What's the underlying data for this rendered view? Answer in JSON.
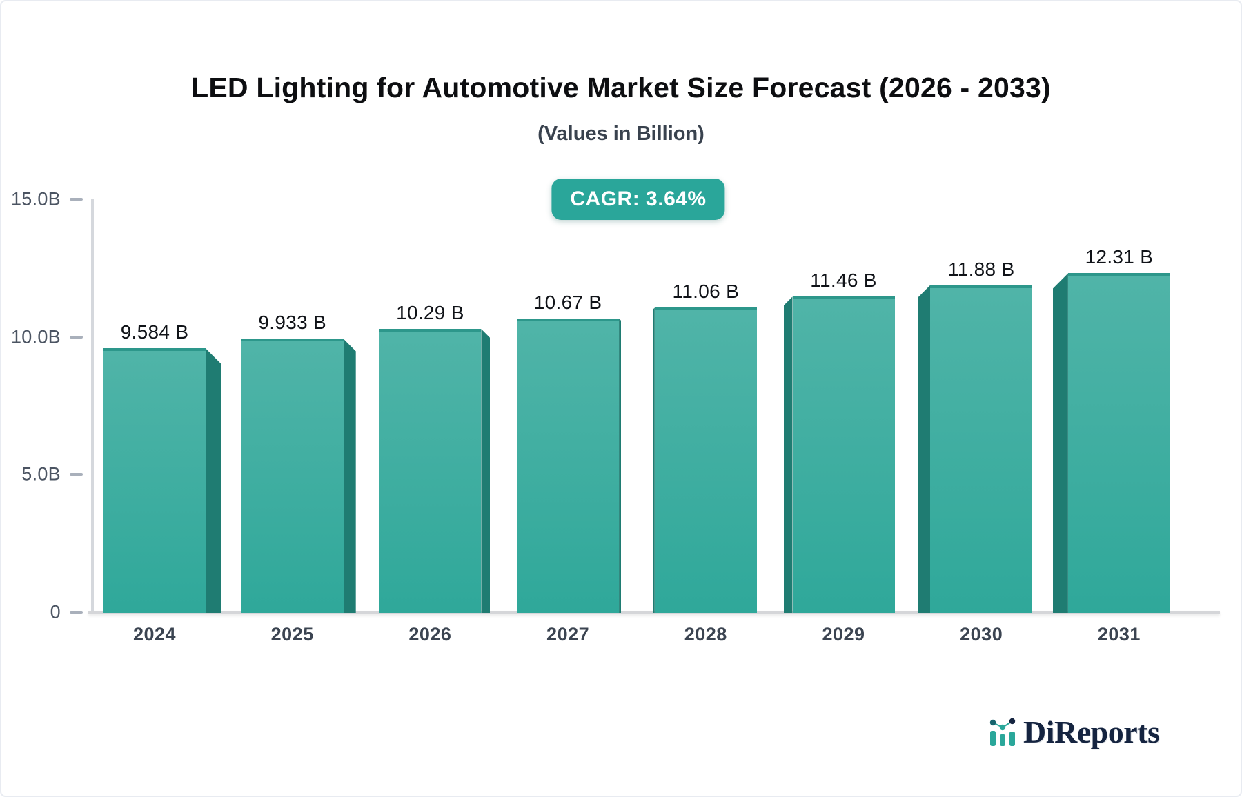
{
  "title": "LED Lighting for Automotive Market Size Forecast (2026 - 2033)",
  "subtitle": "(Values in Billion)",
  "badge": {
    "label": "CAGR: 3.64%"
  },
  "logo": {
    "text": "DiReports",
    "icon": "bar-line-chart-icon"
  },
  "colors": {
    "bar_face_top": "#50b4a8",
    "bar_face_bottom": "#2fa89a",
    "bar_top_edge": "#2d978b",
    "bar_side": "#1f7c72",
    "badge_bg": "#2aa69a",
    "axis_line": "#d5d8dd",
    "logo_navy": "#152440",
    "logo_teal": "#2aa79a"
  },
  "chart_data": {
    "type": "bar",
    "categories": [
      "2024",
      "2025",
      "2026",
      "2027",
      "2028",
      "2029",
      "2030",
      "2031"
    ],
    "values": [
      9.584,
      9.933,
      10.29,
      10.67,
      11.06,
      11.46,
      11.88,
      12.31
    ],
    "value_labels": [
      "9.584 B",
      "9.933 B",
      "10.29 B",
      "10.67 B",
      "11.06 B",
      "11.46 B",
      "11.88 B",
      "12.31 B"
    ],
    "title": "LED Lighting for Automotive Market Size Forecast (2026 - 2033)",
    "xlabel": "",
    "ylabel": "",
    "ylim": [
      0,
      15
    ],
    "y_ticks": [
      {
        "label": "15.0B",
        "value": 15
      },
      {
        "label": "10.0B",
        "value": 10
      },
      {
        "label": "5.0B",
        "value": 5
      },
      {
        "label": "0",
        "value": 0
      }
    ],
    "grid": false,
    "legend": null,
    "style": "3d-perspective-bars"
  }
}
